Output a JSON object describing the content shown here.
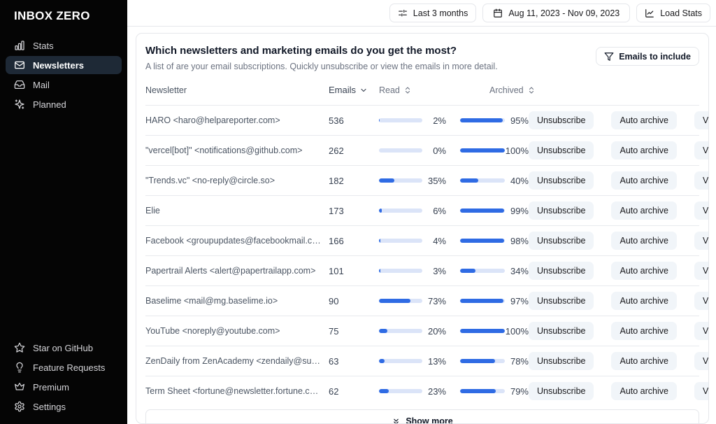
{
  "sidebar": {
    "logo": "INBOX ZERO",
    "items": [
      {
        "label": "Stats",
        "icon": "bar-chart-icon",
        "active": false
      },
      {
        "label": "Newsletters",
        "icon": "envelope-icon",
        "active": true
      },
      {
        "label": "Mail",
        "icon": "inbox-icon",
        "active": false
      },
      {
        "label": "Planned",
        "icon": "sparkles-icon",
        "active": false
      }
    ],
    "footer_items": [
      {
        "label": "Star on GitHub",
        "icon": "star-icon"
      },
      {
        "label": "Feature Requests",
        "icon": "lightbulb-icon"
      },
      {
        "label": "Premium",
        "icon": "crown-icon"
      },
      {
        "label": "Settings",
        "icon": "gear-icon"
      }
    ]
  },
  "topbar": {
    "period_label": "Last 3 months",
    "date_range": "Aug 11, 2023 - Nov 09, 2023",
    "load_stats_label": "Load Stats"
  },
  "panel": {
    "title": "Which newsletters and marketing emails do you get the most?",
    "subtitle": "A list of are your email subscriptions. Quickly unsubscribe or view the emails in more detail.",
    "filter_button_label": "Emails to include",
    "show_more_label": "Show more"
  },
  "table": {
    "columns": [
      {
        "label": "Newsletter",
        "sort_icon": null
      },
      {
        "label": "Emails",
        "sort_icon": "chevron-down-icon"
      },
      {
        "label": "Read",
        "sort_icon": "chevrons-up-down-icon"
      },
      {
        "label": "Archived",
        "sort_icon": "chevrons-up-down-icon"
      }
    ],
    "actions": [
      "Unsubscribe",
      "Auto archive",
      "View"
    ],
    "rows": [
      {
        "newsletter": "HARO <haro@helpareporter.com>",
        "emails": 536,
        "read_pct": 2,
        "archived_pct": 95
      },
      {
        "newsletter": "\"vercel[bot]\" <notifications@github.com>",
        "emails": 262,
        "read_pct": 0,
        "archived_pct": 100
      },
      {
        "newsletter": "\"Trends.vc\" <no-reply@circle.so>",
        "emails": 182,
        "read_pct": 35,
        "archived_pct": 40
      },
      {
        "newsletter": "Elie",
        "emails": 173,
        "read_pct": 6,
        "archived_pct": 99
      },
      {
        "newsletter": "Facebook <groupupdates@facebookmail.com>",
        "emails": 166,
        "read_pct": 4,
        "archived_pct": 98
      },
      {
        "newsletter": "Papertrail Alerts <alert@papertrailapp.com>",
        "emails": 101,
        "read_pct": 3,
        "archived_pct": 34
      },
      {
        "newsletter": "Baselime <mail@mg.baselime.io>",
        "emails": 90,
        "read_pct": 73,
        "archived_pct": 97
      },
      {
        "newsletter": "YouTube <noreply@youtube.com>",
        "emails": 75,
        "read_pct": 20,
        "archived_pct": 100
      },
      {
        "newsletter": "ZenDaily from ZenAcademy <zendaily@substack.com>",
        "emails": 63,
        "read_pct": 13,
        "archived_pct": 78
      },
      {
        "newsletter": "Term Sheet <fortune@newsletter.fortune.com>",
        "emails": 62,
        "read_pct": 23,
        "archived_pct": 79
      }
    ]
  },
  "colors": {
    "progress_fill": "#2f6be4",
    "progress_track": "#dbe4f8",
    "sidebar_active_bg": "#1e2936"
  }
}
